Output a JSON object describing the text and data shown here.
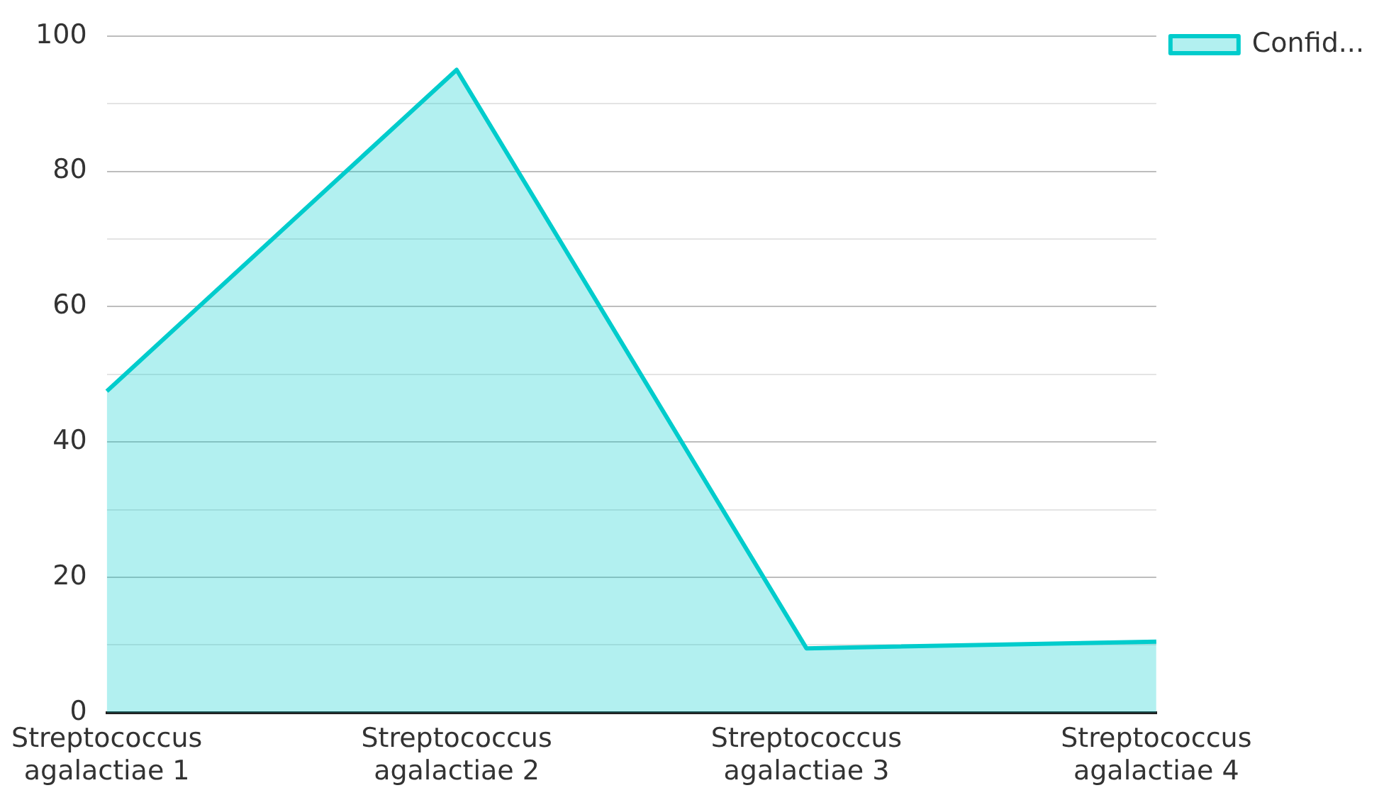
{
  "chart_data": {
    "type": "area",
    "categories": [
      "Streptococcus agalactiae 1",
      "Streptococcus agalactiae 2",
      "Streptococcus agalactiae 3",
      "Streptococcus agalactiae 4"
    ],
    "series": [
      {
        "name": "Confid...",
        "color": "#00cccc",
        "values": [
          47.5,
          95,
          9.5,
          10.5
        ]
      }
    ],
    "ylim": [
      0,
      100
    ],
    "yticks": [
      0,
      {
        "value": 10,
        "label": null
      },
      20,
      {
        "value": 30,
        "label": null
      },
      40,
      {
        "value": 50,
        "label": null
      },
      60,
      {
        "value": 70,
        "label": null
      },
      80,
      {
        "value": 90,
        "label": null
      },
      100
    ],
    "grid": "y",
    "legend": "top right",
    "marker": "none"
  }
}
